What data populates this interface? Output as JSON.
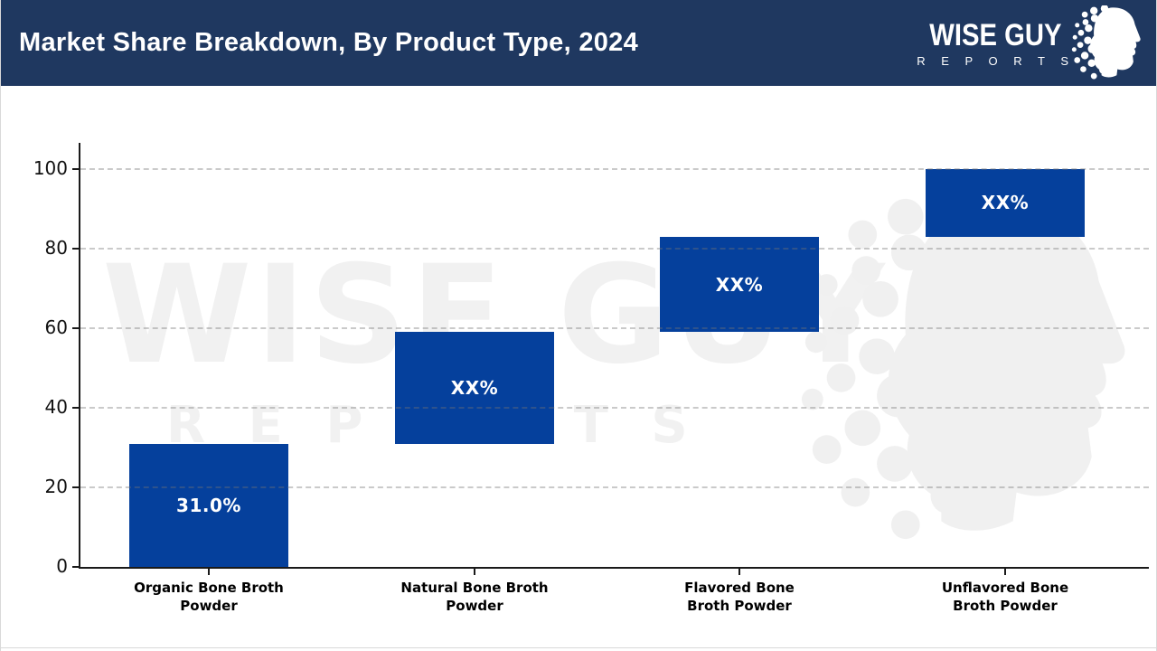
{
  "header": {
    "title": "Market Share Breakdown, By Product Type, 2024",
    "logo": {
      "name": "WISE GUY",
      "sub": "R E P O R T S"
    }
  },
  "watermark": {
    "big": "WISE GUY",
    "sub": "R E P O R T S"
  },
  "colors": {
    "header_bg": "#1f3860",
    "bar": "#05409c",
    "bar_label": "#ffffff",
    "gridline": "#c9c9c9",
    "axis": "#1a1a1a",
    "watermark": "#f1f1f1",
    "frame_rule": "#d9d9d9"
  },
  "chart_data": {
    "type": "bar",
    "variant": "floating-waterfall",
    "title": "Market Share Breakdown, By Product Type, 2024",
    "categories": [
      "Organic Bone Broth Powder",
      "Natural Bone Broth Powder",
      "Flavored Bone Broth Powder",
      "Unflavored Bone Broth Powder"
    ],
    "category_lines": [
      [
        "Organic Bone Broth",
        "Powder"
      ],
      [
        "Natural Bone Broth",
        "Powder"
      ],
      [
        "Flavored Bone",
        "Broth Powder"
      ],
      [
        "Unflavored Bone",
        "Broth Powder"
      ]
    ],
    "segments": [
      {
        "start": 0,
        "end": 31,
        "label": "31.0%",
        "value_pct_estimated": 31
      },
      {
        "start": 31,
        "end": 59,
        "label": "XX%",
        "value_pct_estimated": 28
      },
      {
        "start": 59,
        "end": 83,
        "label": "XX%",
        "value_pct_estimated": 24
      },
      {
        "start": 83,
        "end": 100,
        "label": "XX%",
        "value_pct_estimated": 17
      }
    ],
    "ylim": [
      0,
      100
    ],
    "yticks": [
      0,
      20,
      40,
      60,
      80,
      100
    ],
    "xlabel": "",
    "ylabel": "",
    "grid": "horizontal-dashed",
    "legend": "none"
  }
}
